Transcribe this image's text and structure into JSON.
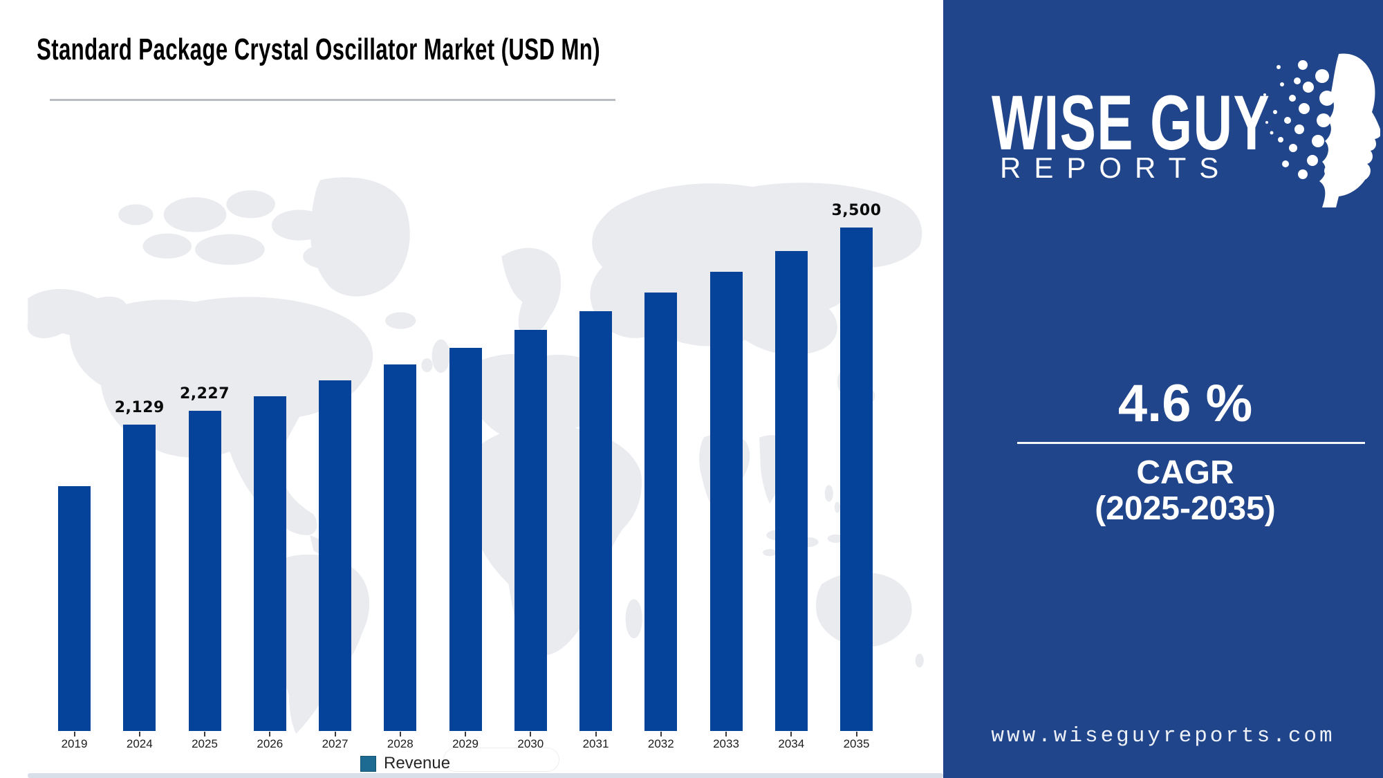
{
  "title": "Standard Package Crystal Oscillator Market (USD Mn)",
  "chart_data": {
    "type": "bar",
    "title": "Standard Package Crystal Oscillator Market (USD Mn)",
    "categories": [
      "2019",
      "2024",
      "2025",
      "2026",
      "2027",
      "2028",
      "2029",
      "2030",
      "2031",
      "2032",
      "2033",
      "2034",
      "2035"
    ],
    "series": [
      {
        "name": "Revenue",
        "values": [
          1700,
          2129,
          2227,
          2329,
          2436,
          2548,
          2665,
          2788,
          2916,
          3050,
          3191,
          3337,
          3500
        ]
      }
    ],
    "data_labels": {
      "2024": "2,129",
      "2025": "2,227",
      "2035": "3,500"
    },
    "xlabel": "",
    "ylabel": "",
    "ylim": [
      0,
      3500
    ],
    "grid": false,
    "legend_position": "bottom",
    "bar_color": "#05439a",
    "legend_marker_color": "#1d6b92"
  },
  "legend": {
    "revenue_label": "Revenue"
  },
  "sidebar": {
    "brand_name": "WISE GUY",
    "brand_sub": "REPORTS",
    "cagr_value": "4.6 %",
    "cagr_label": "CAGR",
    "cagr_period": "(2025-2035)",
    "website": "www.wiseguyreports.com",
    "background_color": "#21458a"
  }
}
